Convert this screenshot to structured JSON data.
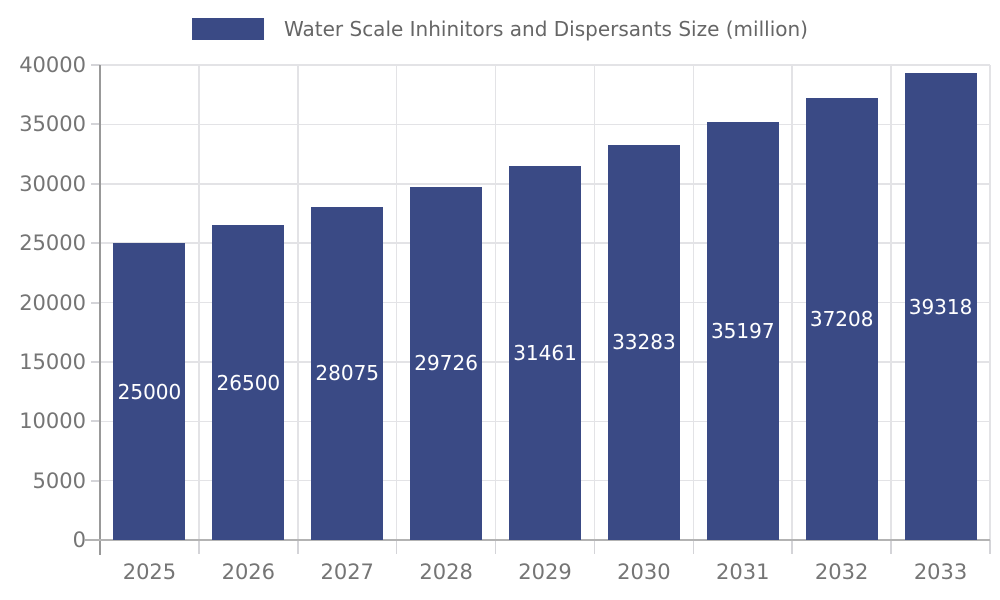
{
  "legend": {
    "label": "Water Scale Inhinitors and Dispersants Size (million)"
  },
  "colors": {
    "bar": "#3a4a85",
    "grid": "#e3e3e6",
    "y_axis_line": "#999999",
    "x_axis_line": "#b3b3b3",
    "tick": "#d4d4d8",
    "axis_label_text": "#757575",
    "legend_text": "#666666",
    "value_label_text": "#ffffff"
  },
  "chart_data": {
    "type": "bar",
    "title": "",
    "legend_entries": [
      "Water Scale Inhinitors and Dispersants Size (million)"
    ],
    "legend_position": "top",
    "categories": [
      "2025",
      "2026",
      "2027",
      "2028",
      "2029",
      "2030",
      "2031",
      "2032",
      "2033"
    ],
    "values": [
      25000,
      26500,
      28075,
      29726,
      31461,
      33283,
      35197,
      37208,
      39318
    ],
    "value_labels_shown": true,
    "value_label_placement": "inside-middle",
    "xlabel": "",
    "ylabel": "",
    "ylim": [
      0,
      40000
    ],
    "ytick_step": 5000,
    "ytick_labels": [
      "0",
      "5000",
      "10000",
      "15000",
      "20000",
      "25000",
      "30000",
      "35000",
      "40000"
    ],
    "grid": true
  }
}
